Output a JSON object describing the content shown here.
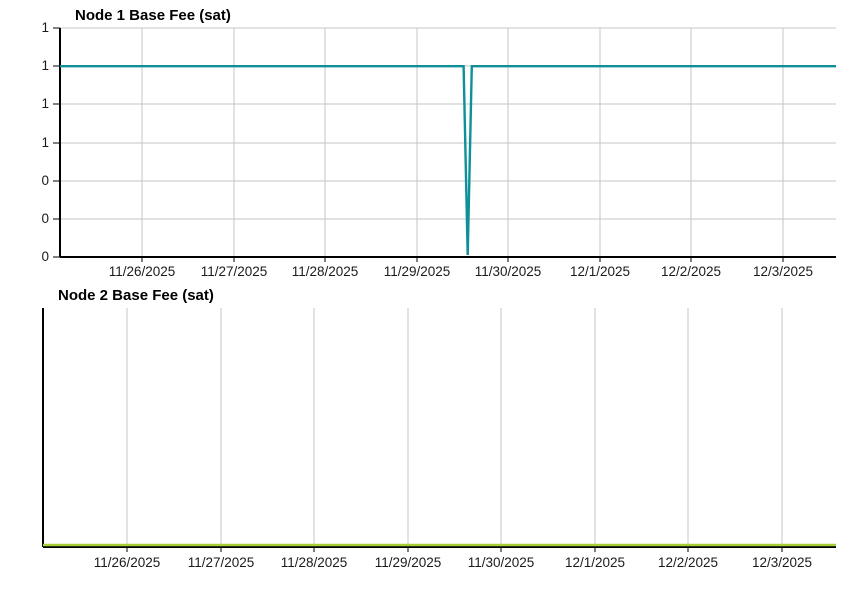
{
  "colors": {
    "grid": "#c6c6c6",
    "axis": "#000000",
    "text": "#1b1b1b",
    "node1_line": "#0e9098",
    "node2_line": "#a6ce39",
    "background": "#ffffff"
  },
  "chart_data": [
    {
      "type": "line",
      "title": "Node 1 Base Fee (sat)",
      "xlabel": "",
      "ylabel": "",
      "xlim": [
        -0.9,
        7.58
      ],
      "ylim": [
        0,
        1.2
      ],
      "grid": true,
      "legend": "none",
      "x_ticks": [
        {
          "t": 0,
          "label": "11/26/2025"
        },
        {
          "t": 1,
          "label": "11/27/2025"
        },
        {
          "t": 2,
          "label": "11/28/2025"
        },
        {
          "t": 3,
          "label": "11/29/2025"
        },
        {
          "t": 4,
          "label": "11/30/2025"
        },
        {
          "t": 5,
          "label": "12/1/2025"
        },
        {
          "t": 6,
          "label": "12/2/2025"
        },
        {
          "t": 7,
          "label": "12/3/2025"
        }
      ],
      "y_ticks": [
        {
          "v": 0.0,
          "label": "0"
        },
        {
          "v": 0.2,
          "label": "0"
        },
        {
          "v": 0.4,
          "label": "0"
        },
        {
          "v": 0.6,
          "label": "1"
        },
        {
          "v": 0.8,
          "label": "1"
        },
        {
          "v": 1.0,
          "label": "1"
        },
        {
          "v": 1.2,
          "label": "1"
        }
      ],
      "series": [
        {
          "name": "Node 1 Base Fee",
          "color": "#0e9098",
          "points": [
            [
              -0.9,
              1
            ],
            [
              3.51,
              1
            ],
            [
              3.555,
              0
            ],
            [
              3.6,
              1
            ],
            [
              7.58,
              1
            ]
          ]
        }
      ]
    },
    {
      "type": "line",
      "title": "Node 2 Base Fee (sat)",
      "xlabel": "",
      "ylabel": "",
      "xlim": [
        -0.9,
        7.58
      ],
      "ylim": [
        0,
        1
      ],
      "grid": true,
      "legend": "none",
      "x_ticks": [
        {
          "t": 0,
          "label": "11/26/2025"
        },
        {
          "t": 1,
          "label": "11/27/2025"
        },
        {
          "t": 2,
          "label": "11/28/2025"
        },
        {
          "t": 3,
          "label": "11/29/2025"
        },
        {
          "t": 4,
          "label": "11/30/2025"
        },
        {
          "t": 5,
          "label": "12/1/2025"
        },
        {
          "t": 6,
          "label": "12/2/2025"
        },
        {
          "t": 7,
          "label": "12/3/2025"
        }
      ],
      "y_ticks": [],
      "series": [
        {
          "name": "Node 2 Base Fee",
          "color": "#a6ce39",
          "points": [
            [
              -0.9,
              0
            ],
            [
              7.58,
              0
            ]
          ]
        }
      ]
    }
  ]
}
